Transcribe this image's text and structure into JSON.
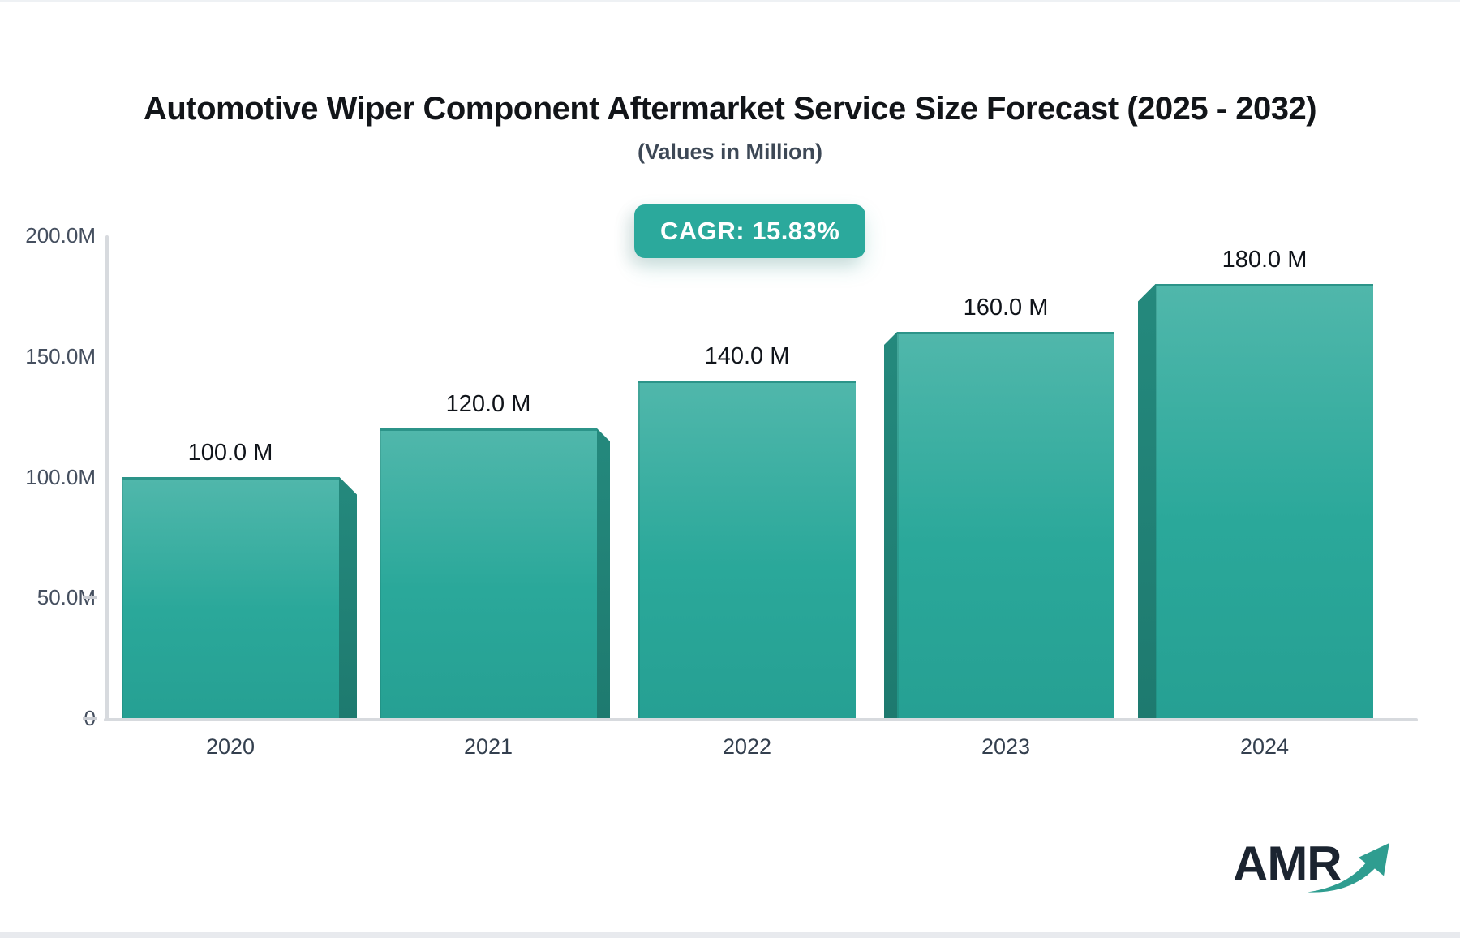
{
  "page": {
    "title": "Automotive Wiper Component Aftermarket Service Size Forecast (2025 - 2032)",
    "subtitle": "(Values in Million)",
    "cagr_label": "CAGR: 15.83%",
    "brand": "AMR"
  },
  "chart_data": {
    "type": "bar",
    "title": "Automotive Wiper Component Aftermarket Service Size Forecast (2025 - 2032)",
    "subtitle": "(Values in Million)",
    "cagr": "15.83%",
    "categories": [
      "2020",
      "2021",
      "2022",
      "2023",
      "2024"
    ],
    "values": [
      100,
      120,
      140,
      160,
      180
    ],
    "value_labels": [
      "100.0 M",
      "120.0 M",
      "140.0 M",
      "160.0 M",
      "180.0 M"
    ],
    "unit": "Million",
    "ylabel": "",
    "xlabel": "",
    "ylim": [
      0,
      200
    ],
    "y_ticks": [
      0,
      50,
      100,
      150,
      200
    ],
    "y_tick_labels": [
      "0",
      "50.0M",
      "100.0M",
      "150.0M",
      "200.0M"
    ],
    "grid": false,
    "legend": false,
    "colors": {
      "bar_gradient_top": "#50b7ab",
      "bar_gradient_bottom": "#26a093",
      "bar_side_3d": "#1e7a6f",
      "badge_background": "#2ba99c",
      "axis_line": "#d7dade",
      "brand_arrow": "#2f9d90",
      "brand_text": "#1b2430"
    }
  }
}
